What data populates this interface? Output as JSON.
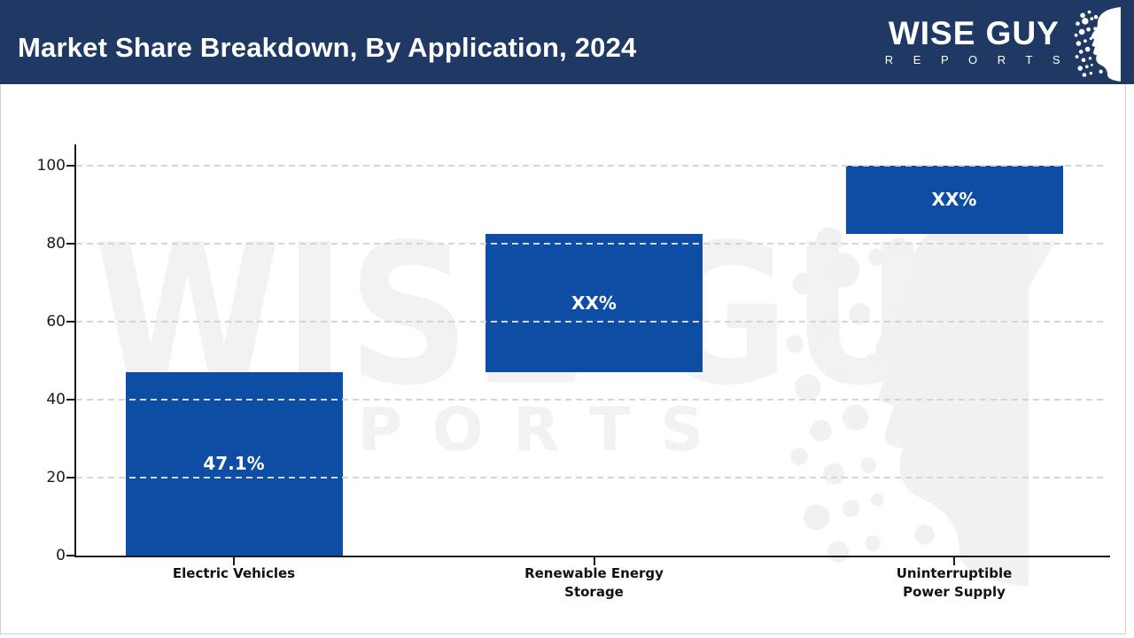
{
  "header": {
    "title": "Market Share Breakdown, By Application, 2024",
    "logo": {
      "line1": "WISE GUY",
      "line2": "R E P O R T S"
    }
  },
  "watermark": {
    "line1": "WISE GUY",
    "line2": "R E P O R T S"
  },
  "chart_data": {
    "type": "bar",
    "variant": "waterfall-stacked-percent",
    "title": "Market Share Breakdown, By Application, 2024",
    "categories": [
      "Electric Vehicles",
      "Renewable Energy Storage",
      "Uninterruptible Power Supply"
    ],
    "category_label_lines": [
      [
        "Electric Vehicles"
      ],
      [
        "Renewable Energy",
        "Storage"
      ],
      [
        "Uninterruptible",
        "Power Supply"
      ]
    ],
    "segments": [
      {
        "category": "Electric Vehicles",
        "start": 0,
        "end": 47.1,
        "value_label": "47.1%"
      },
      {
        "category": "Renewable Energy Storage",
        "start": 47.1,
        "end": 82.6,
        "value_label": "XX%"
      },
      {
        "category": "Uninterruptible Power Supply",
        "start": 82.6,
        "end": 100,
        "value_label": "XX%"
      }
    ],
    "xlabel": "",
    "ylabel": "",
    "ylim": [
      0,
      100
    ],
    "yticks": [
      "0",
      "20",
      "40",
      "60",
      "80",
      "100"
    ],
    "grid": "horizontal-dashed",
    "legend": "none",
    "bar_color": "#0d4da3",
    "bar_label_color": "#ffffff",
    "axis_color": "#1a1a1a",
    "header_color": "#1f3864",
    "watermark_color": "#f2f2f2"
  }
}
